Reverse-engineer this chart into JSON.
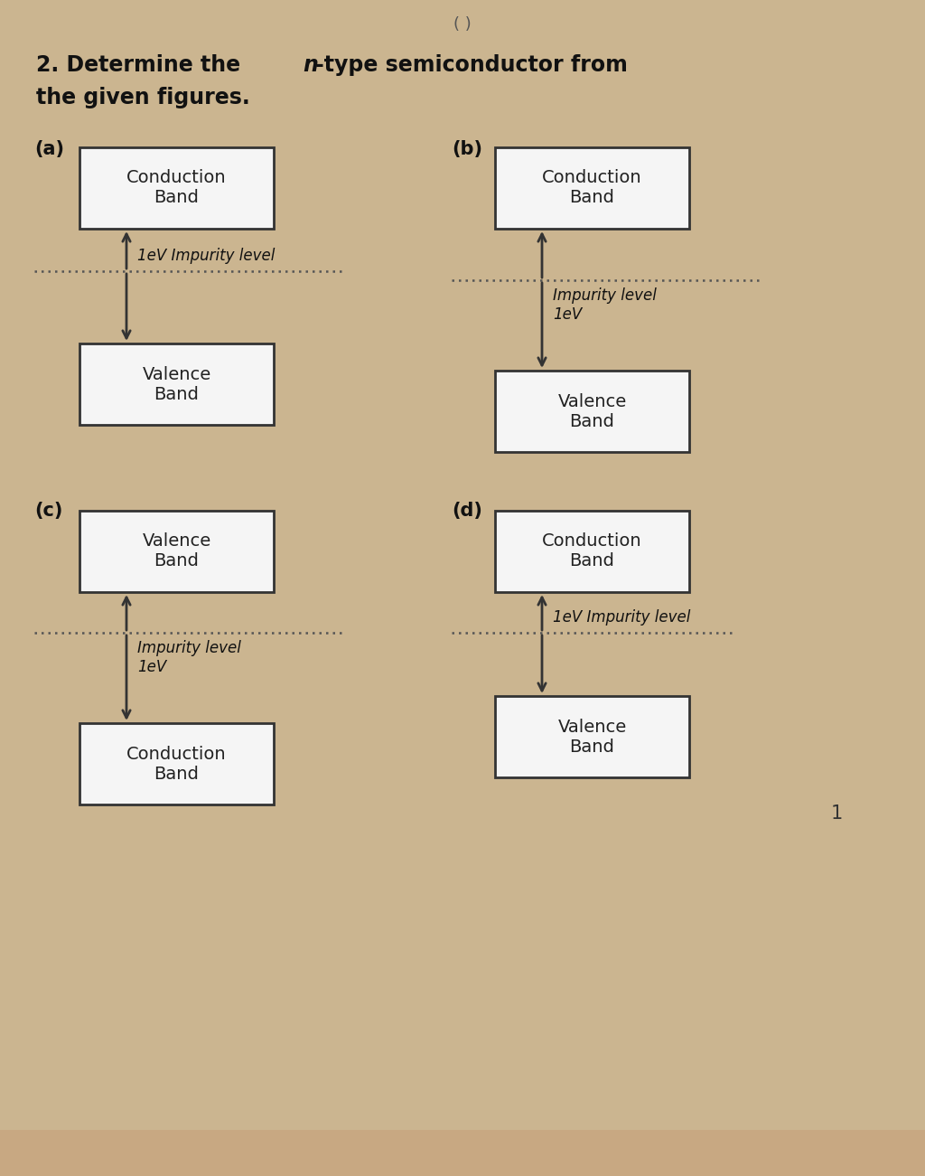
{
  "bg_color": "#c8a882",
  "content_bg": "#d8c4a8",
  "box_bg": "#f5f5f5",
  "box_edge": "#333333",
  "text_color": "#222222",
  "arrow_color": "#333333",
  "dotted_color": "#666666",
  "title_line1": "2. Determine the ",
  "title_italic": "n",
  "title_line1b": "-type semiconductor from",
  "title_line2": "the given figures.",
  "page_number": "1",
  "diagrams": {
    "a": {
      "label": "(a)",
      "top_text": "Conduction\nBand",
      "bot_text": "Valence\nBand",
      "impurity_text": "1eV Impurity level",
      "impurity_text_above": true,
      "arrow_up_from_imp": true,
      "arrow_down_from_imp": true,
      "dotted_left_extends": true
    },
    "b": {
      "label": "(b)",
      "top_text": "Conduction\nBand",
      "bot_text": "Valence\nBand",
      "impurity_text": "Impurity level\n1eV",
      "impurity_text_above": false,
      "arrow_up_from_imp": true,
      "arrow_down_from_imp": true,
      "dotted_left_extends": true
    },
    "c": {
      "label": "(c)",
      "top_text": "Valence\nBand",
      "bot_text": "Conduction\nBand",
      "impurity_text": "Impurity level\n1eV",
      "impurity_text_above": false,
      "arrow_up_from_imp": true,
      "arrow_down_from_imp": true,
      "dotted_left_extends": true
    },
    "d": {
      "label": "(d)",
      "top_text": "Conduction\nBand",
      "bot_text": "Valence\nBand",
      "impurity_text": "1eV Impurity level",
      "impurity_text_above": true,
      "arrow_up_from_imp": true,
      "arrow_down_from_imp": true,
      "dotted_left_extends": false
    }
  }
}
